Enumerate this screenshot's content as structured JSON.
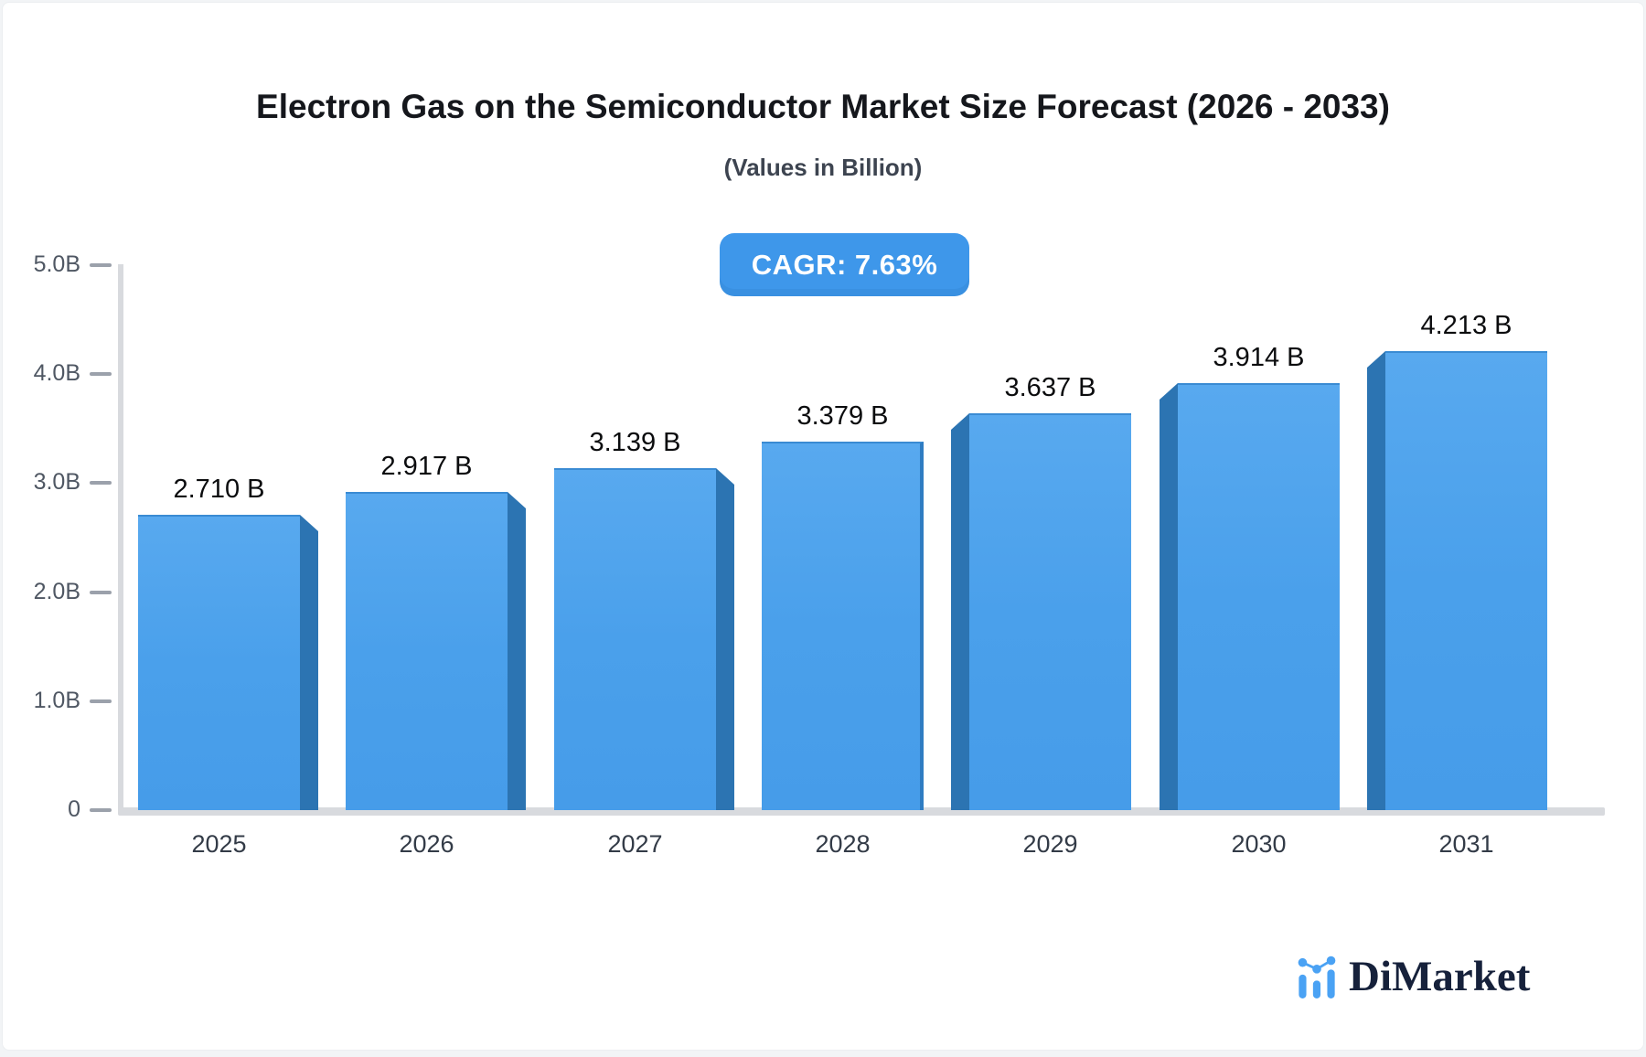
{
  "title": "Electron Gas on the Semiconductor Market Size Forecast (2026 - 2033)",
  "subtitle": "(Values in Billion)",
  "badge": {
    "label": "CAGR: 7.63%",
    "color": "#3e97ea"
  },
  "chart_data": {
    "type": "bar",
    "categories": [
      "2025",
      "2026",
      "2027",
      "2028",
      "2029",
      "2030",
      "2031"
    ],
    "values": [
      2.71,
      2.917,
      3.139,
      3.379,
      3.637,
      3.914,
      4.213
    ],
    "value_labels": [
      "2.710 B",
      "2.917 B",
      "3.139 B",
      "3.379 B",
      "3.637 B",
      "3.914 B",
      "4.213 B"
    ],
    "title": "Electron Gas on the Semiconductor Market Size Forecast (2026 - 2033)",
    "xlabel": "",
    "ylabel": "",
    "ylim": [
      0,
      5
    ],
    "y_ticks": [
      "5.0B",
      "4.0B",
      "3.0B",
      "2.0B",
      "1.0B",
      "0"
    ],
    "grid": false,
    "legend": false,
    "bar_color": "#4aa0eb",
    "bar_side_color": "#2c74b2",
    "style": "3d-extruded-bars, extrusion toward center vanishing point"
  },
  "logo": {
    "text": "DiMarket",
    "icon": "mini-bar-line-chart-icon",
    "icon_color": "#4aa2f4",
    "text_color": "#16213b"
  },
  "colors": {
    "background": "#ffffff",
    "axis": "#d8dade",
    "tick": "#9ba1ab",
    "y_label": "#4f5763",
    "x_label": "#333b47",
    "value_label": "#0b0c0e",
    "title": "#15171c",
    "subtitle": "#3d4450"
  }
}
